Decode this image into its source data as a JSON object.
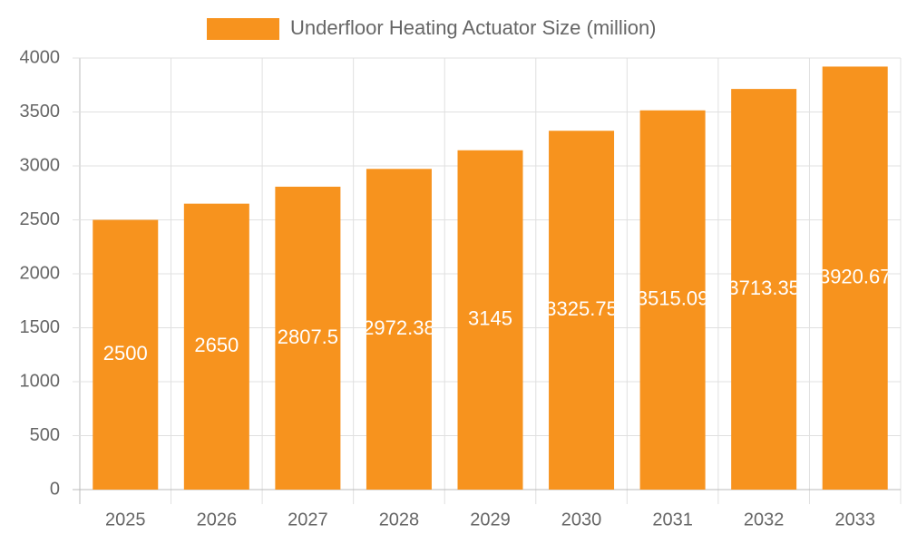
{
  "chart_data": {
    "type": "bar",
    "categories": [
      "2025",
      "2026",
      "2027",
      "2028",
      "2029",
      "2030",
      "2031",
      "2032",
      "2033"
    ],
    "series": [
      {
        "name": "Underfloor Heating Actuator Size (million)",
        "color": "#f7931e",
        "values": [
          2500,
          2650,
          2807.5,
          2972.38,
          3145,
          3325.75,
          3515.09,
          3713.35,
          3920.67
        ]
      }
    ],
    "ylim": [
      0,
      4000
    ],
    "yticks": [
      0,
      500,
      1000,
      1500,
      2000,
      2500,
      3000,
      3500,
      4000
    ],
    "grid": true,
    "legend": "top"
  }
}
